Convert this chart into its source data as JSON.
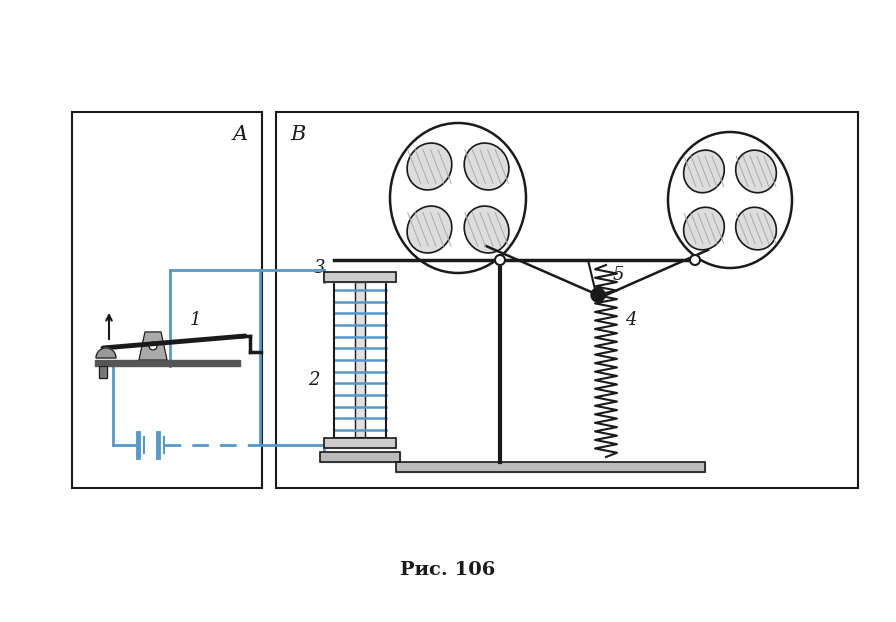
{
  "title": "Рис. 106",
  "bg_color": "#ffffff",
  "blue_line_color": "#5599cc",
  "dark_color": "#1a1a1a",
  "gray_color": "#888888",
  "light_gray": "#cccccc",
  "coil_color": "#5599cc",
  "label_A": "A",
  "label_B": "B",
  "labels": [
    "1",
    "2",
    "3",
    "4",
    "5"
  ]
}
